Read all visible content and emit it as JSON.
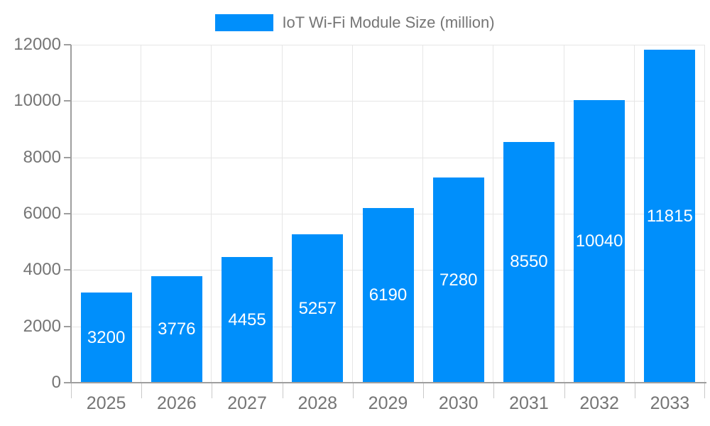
{
  "chart_data": {
    "type": "bar",
    "title": "",
    "legend": {
      "label": "IoT Wi-Fi Module Size (million)",
      "position": "top"
    },
    "categories": [
      "2025",
      "2026",
      "2027",
      "2028",
      "2029",
      "2030",
      "2031",
      "2032",
      "2033"
    ],
    "series": [
      {
        "name": "IoT Wi-Fi Module Size (million)",
        "values": [
          3200,
          3776,
          4455,
          5257,
          6190,
          7280,
          8550,
          10040,
          11815
        ]
      }
    ],
    "xlabel": "",
    "ylabel": "",
    "ylim": [
      0,
      12000
    ],
    "yticks": [
      0,
      2000,
      4000,
      6000,
      8000,
      10000,
      12000
    ],
    "grid": true,
    "data_labels": "inside-center",
    "colors": {
      "bar": "#008FFB",
      "data_label": "#ffffff",
      "axis_label": "#757575",
      "grid_line": "#e6e6e6",
      "axis_line": "#9e9e9e",
      "background": "#ffffff"
    }
  }
}
